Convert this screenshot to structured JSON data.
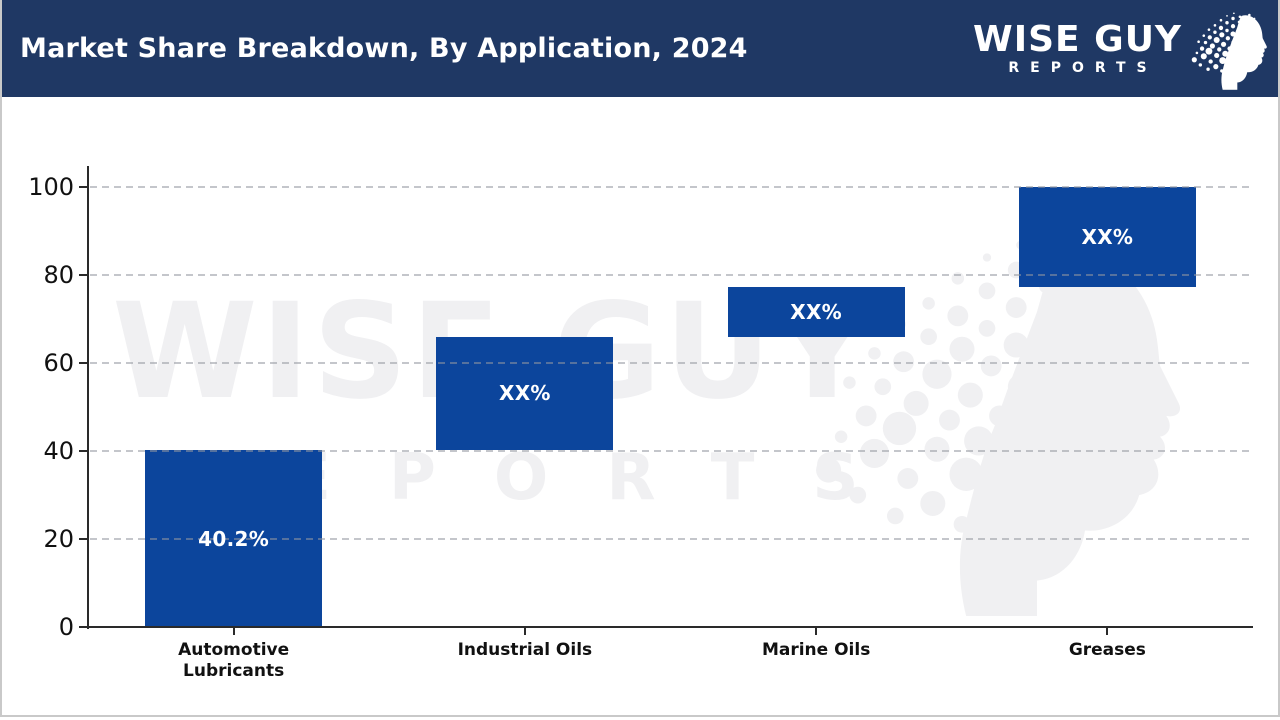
{
  "header": {
    "title": "Market Share Breakdown, By Application, 2024",
    "bg_color": "#1f3864",
    "logo": {
      "line1": "WISE GUY",
      "line2": "REPORTS"
    }
  },
  "watermark": {
    "line1": "WISE GUY",
    "line2": "REPORTS"
  },
  "chart_data": {
    "type": "bar",
    "subtype": "floating-waterfall",
    "title": "Market Share Breakdown, By Application, 2024",
    "xlabel": "",
    "ylabel": "",
    "ylim": [
      0,
      100
    ],
    "yticks": [
      0,
      20,
      40,
      60,
      80,
      100
    ],
    "grid": "horizontal-dashed-over-bars",
    "bar_color": "#0c459c",
    "axis_color": "#2a2a2a",
    "value_label_color": "#ffffff",
    "categories": [
      "Automotive\nLubricants",
      "Industrial Oils",
      "Marine Oils",
      "Greases"
    ],
    "segments": [
      {
        "category": "Automotive Lubricants",
        "start": 0,
        "end": 40.2,
        "label": "40.2%"
      },
      {
        "category": "Industrial Oils",
        "start": 40.2,
        "end": 66,
        "label": "XX%"
      },
      {
        "category": "Marine Oils",
        "start": 66,
        "end": 77.3,
        "label": "XX%"
      },
      {
        "category": "Greases",
        "start": 77.3,
        "end": 100,
        "label": "XX%"
      }
    ]
  }
}
